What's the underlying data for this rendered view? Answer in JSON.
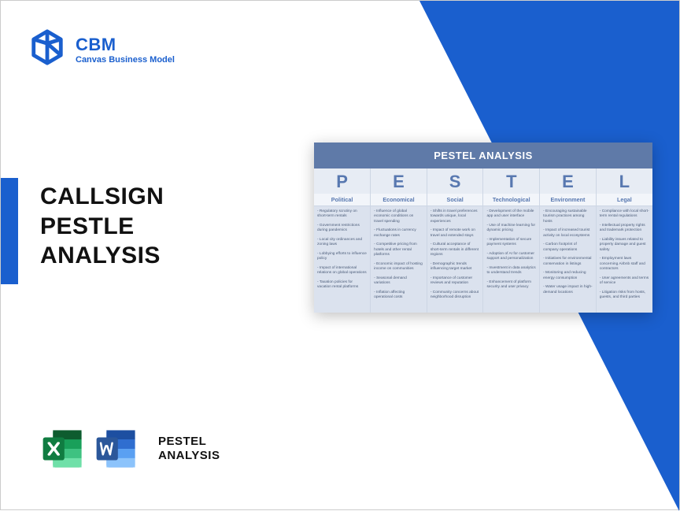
{
  "logo": {
    "title": "CBM",
    "subtitle": "Canvas Business Model"
  },
  "main_title_lines": [
    "CALLSIGN",
    "PESTLE",
    "ANALYSIS"
  ],
  "bottom_label_lines": [
    "PESTEL",
    "ANALYSIS"
  ],
  "colors": {
    "brand_blue": "#1a5fce",
    "card_header_bg": "#5f7aa8",
    "table_header_bg": "#e7ecf4",
    "table_subheader_bg": "#f2f5fa",
    "table_cell_bg": "#dbe2ee",
    "table_text": "#4a5b78",
    "excel_green": "#107c41",
    "word_blue": "#2b579a"
  },
  "pestel": {
    "title": "PESTEL ANALYSIS",
    "columns": [
      {
        "letter": "P",
        "category": "Political",
        "points": [
          "Regulatory scrutiny on short-term rentals",
          "Government restrictions during pandemics",
          "Local city ordinances and zoning laws",
          "Lobbying efforts to influence policy",
          "Impact of international relations on global operations",
          "Taxation policies for vacation rental platforms"
        ]
      },
      {
        "letter": "E",
        "category": "Economical",
        "points": [
          "Influence of global economic conditions on travel spending",
          "Fluctuations in currency exchange rates",
          "Competitive pricing from hotels and other rental platforms",
          "Economic impact of hosting income on communities",
          "Seasonal demand variations",
          "Inflation affecting operational costs"
        ]
      },
      {
        "letter": "S",
        "category": "Social",
        "points": [
          "Shifts in travel preferences towards unique, local experiences",
          "Impact of remote work on travel and extended stays",
          "Cultural acceptance of short-term rentals in different regions",
          "Demographic trends influencing target market",
          "Importance of customer reviews and reputation",
          "Community concerns about neighborhood disruption"
        ]
      },
      {
        "letter": "T",
        "category": "Technological",
        "points": [
          "Development of the mobile app and user interface",
          "Use of machine learning for dynamic pricing",
          "Implementation of secure payment systems",
          "Adoption of AI for customer support and personalization",
          "Investment in data analytics to understand trends",
          "Enhancement of platform security and user privacy"
        ]
      },
      {
        "letter": "E",
        "category": "Environment",
        "points": [
          "Encouraging sustainable tourism practices among hosts",
          "Impact of increased tourist activity on local ecosystems",
          "Carbon footprint of company operations",
          "Initiatives for environmental conservation in listings",
          "Monitoring and reducing energy consumption",
          "Water usage impact in high-demand locations"
        ]
      },
      {
        "letter": "L",
        "category": "Legal",
        "points": [
          "Compliance with local short-term rental regulations",
          "Intellectual property rights and trademark protection",
          "Liability issues related to property damage and guest safety",
          "Employment laws concerning Airbnb staff and contractors",
          "User agreements and terms of service",
          "Litigation risks from hosts, guests, and third parties"
        ]
      }
    ]
  }
}
